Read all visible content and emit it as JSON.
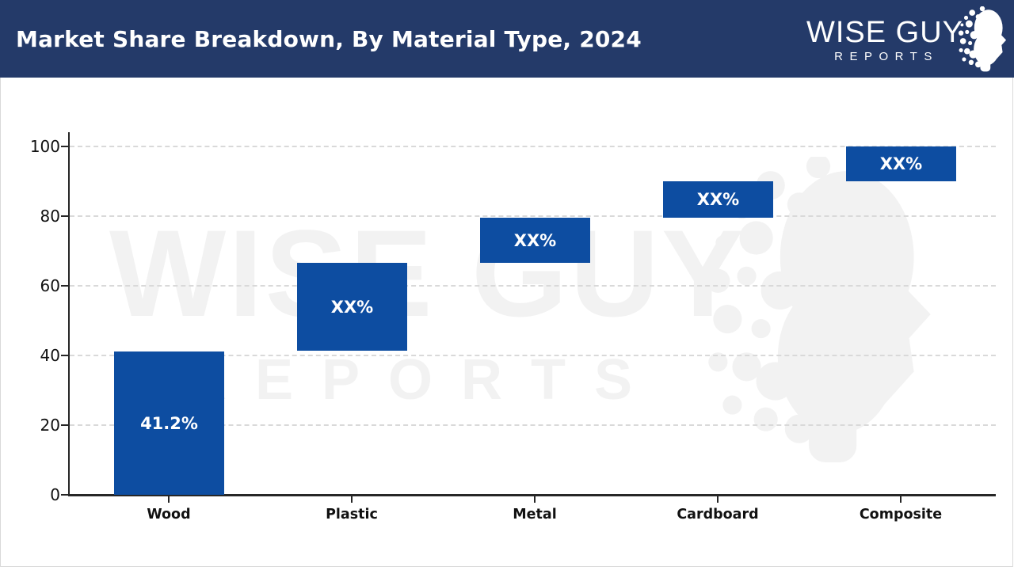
{
  "header": {
    "title": "Market Share Breakdown, By Material Type, 2024",
    "background_color": "#243a69",
    "brand": {
      "line1": "WISE GUY",
      "line2": "REPORTS",
      "icon": "wiseguy-face-icon"
    }
  },
  "watermark": {
    "line1": "WISE GUY",
    "line2": "REPORTS"
  },
  "chart_data": {
    "type": "bar",
    "subtype": "waterfall",
    "title": "Market Share Breakdown, By Material Type, 2024",
    "xlabel": "",
    "ylabel": "",
    "categories": [
      "Wood",
      "Plastic",
      "Metal",
      "Cardboard",
      "Composite"
    ],
    "series": [
      {
        "name": "Market share (%)",
        "segments": [
          {
            "category": "Wood",
            "start": 0,
            "end": 41.2,
            "label": "41.2%"
          },
          {
            "category": "Plastic",
            "start": 41.2,
            "end": 66.5,
            "label": "XX%"
          },
          {
            "category": "Metal",
            "start": 66.5,
            "end": 79.5,
            "label": "XX%"
          },
          {
            "category": "Cardboard",
            "start": 79.5,
            "end": 90,
            "label": "XX%"
          },
          {
            "category": "Composite",
            "start": 90,
            "end": 100,
            "label": "XX%"
          }
        ]
      }
    ],
    "yticks": [
      0,
      20,
      40,
      60,
      80,
      100
    ],
    "ylim": [
      0,
      104
    ],
    "grid": {
      "horizontal": true,
      "style": "dashed",
      "color": "#d9d9d9"
    },
    "legend": null,
    "bar_color": "#0d4da1",
    "bar_label_color": "#ffffff",
    "axis_color": "#262626",
    "tick_label_color": "#111111"
  }
}
